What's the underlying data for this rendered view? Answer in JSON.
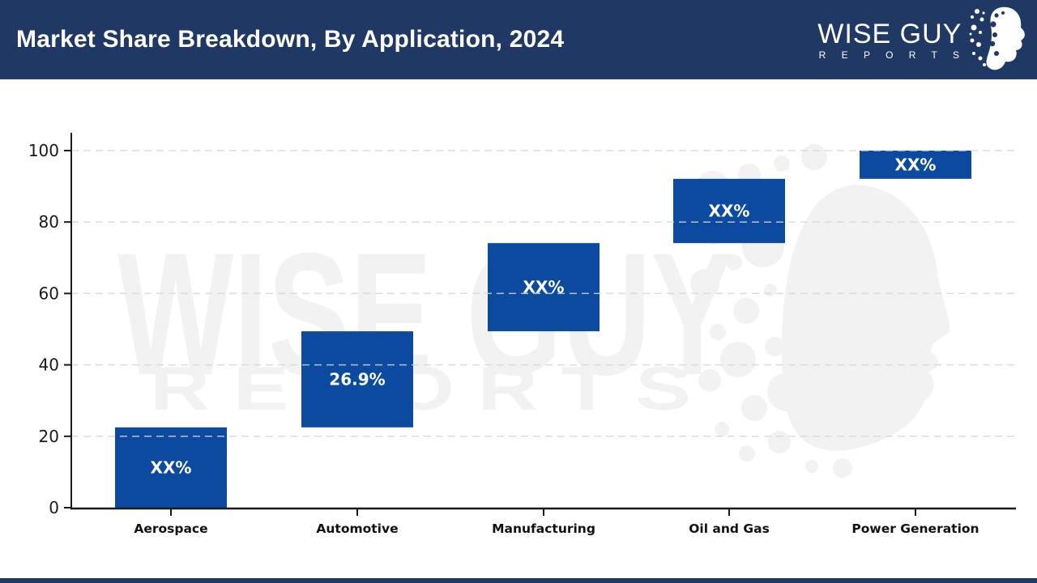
{
  "header": {
    "title": "Market Share Breakdown, By Application, 2024",
    "bg_color": "#203864",
    "logo": {
      "brand": "WISE GUY",
      "sub": "R E P O R T S"
    }
  },
  "watermark": {
    "brand": "WISE GUY",
    "sub": "R E P O R T S"
  },
  "chart_data": {
    "type": "bar",
    "variant": "waterfall",
    "title": "Market Share Breakdown, By Application, 2024",
    "xlabel": "",
    "ylabel": "",
    "categories": [
      "Aerospace",
      "Automotive",
      "Manufacturing",
      "Oil and Gas",
      "Power Generation"
    ],
    "segments": [
      {
        "category": "Aerospace",
        "start": 0,
        "end": 22.5,
        "value": 22.5,
        "label": "XX%"
      },
      {
        "category": "Automotive",
        "start": 22.5,
        "end": 49.4,
        "value": 26.9,
        "label": "26.9%"
      },
      {
        "category": "Manufacturing",
        "start": 49.4,
        "end": 74.1,
        "value": 24.7,
        "label": "XX%"
      },
      {
        "category": "Oil and Gas",
        "start": 74.1,
        "end": 92.1,
        "value": 18.0,
        "label": "XX%"
      },
      {
        "category": "Power Generation",
        "start": 92.1,
        "end": 100,
        "value": 7.9,
        "label": "XX%"
      }
    ],
    "yticks": [
      0,
      20,
      40,
      60,
      80,
      100
    ],
    "ylim": [
      0,
      100
    ],
    "grid": true,
    "grid_style": "dashed",
    "legend": "none",
    "bar_color": "#0b4a9e",
    "bar_label_color": "#ffffff",
    "axis_color": "#1a1a1a",
    "grid_color": "#d8d8d8",
    "tick_label_color": "#1a1a1a"
  },
  "footer": {
    "bg_color": "#203864"
  }
}
